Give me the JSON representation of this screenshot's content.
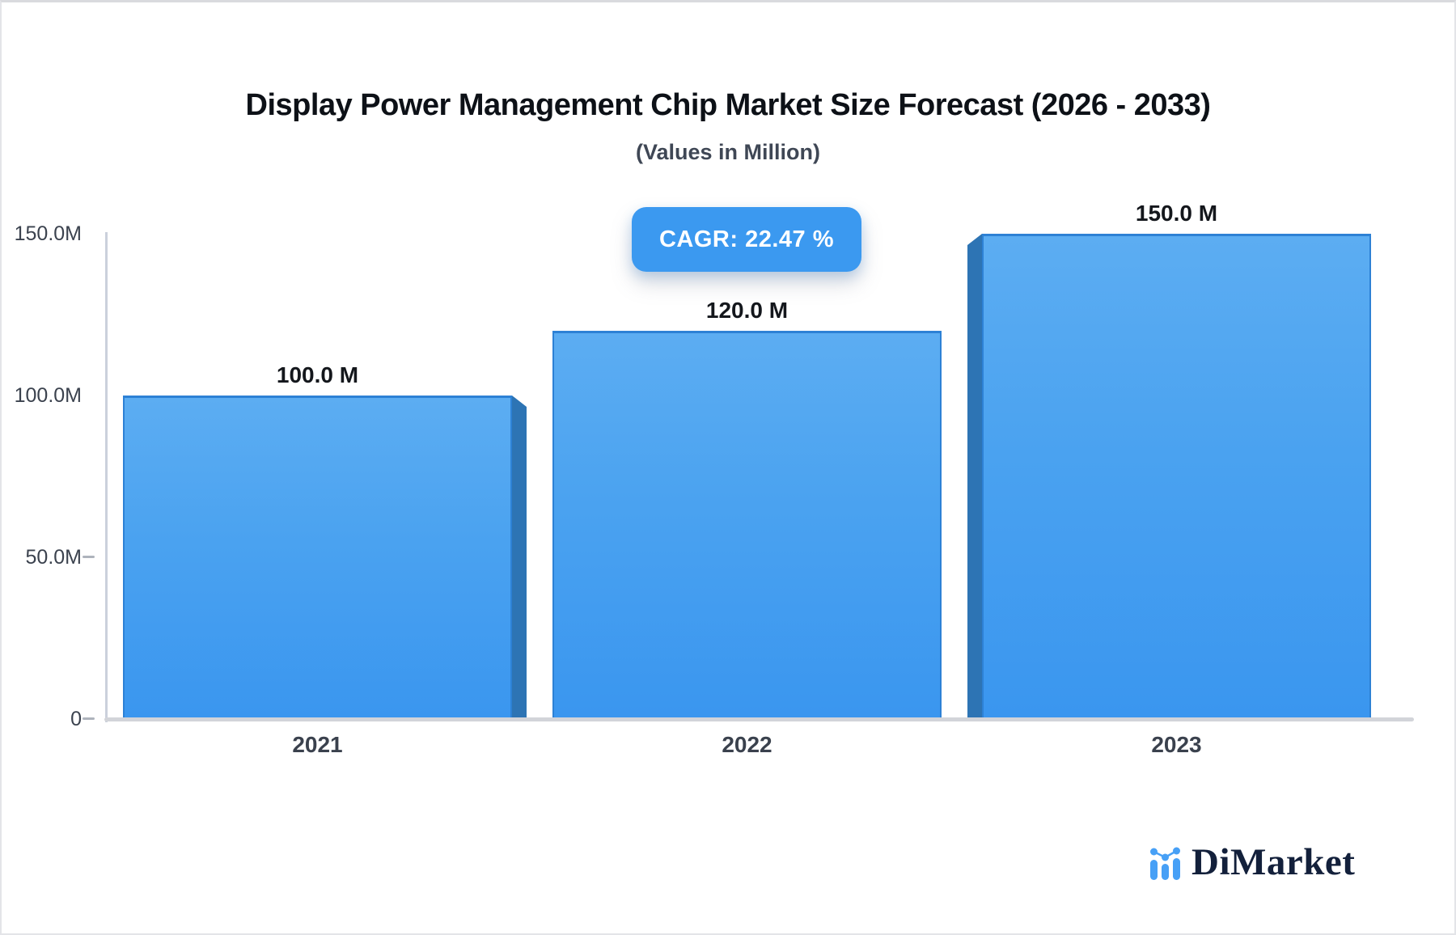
{
  "chart": {
    "title": "Display Power Management Chip Market Size Forecast (2026 - 2033)",
    "subtitle": "(Values in Million)"
  },
  "badge": {
    "label": "CAGR: 22.47 %"
  },
  "chart_data": {
    "type": "bar",
    "title": "Display Power Management Chip Market Size Forecast (2026 - 2033)",
    "subtitle": "(Values in Million)",
    "unit": "Million",
    "categories": [
      "2021",
      "2022",
      "2023"
    ],
    "values": [
      100,
      120,
      150
    ],
    "value_labels": [
      "100.0 M",
      "120.0 M",
      "150.0 M"
    ],
    "y_ticks": [
      150,
      100,
      50,
      0
    ],
    "y_tick_labels": [
      "150.0M",
      "100.0M",
      "50.0M",
      "0"
    ],
    "ylim": [
      0,
      150
    ],
    "xlabel": "",
    "ylabel": "",
    "grid": "off",
    "legend": "none",
    "cagr_label": "CAGR: 22.47 %",
    "bar_color_top": "#5cadf2",
    "bar_color_bottom": "#3a96ef",
    "bar_border_color": "#2d81d5",
    "bar_side_color": "#2d74b4"
  },
  "footer": {
    "logo_text": "DiMarket"
  },
  "colors": {
    "accent_blue": "#3b99f0",
    "axis_line": "#cbd0dc",
    "baseline": "#d2d4d9",
    "tick": "#aeb3bc",
    "logo_navy": "#13203b",
    "logo_blue": "#47a0f6"
  }
}
